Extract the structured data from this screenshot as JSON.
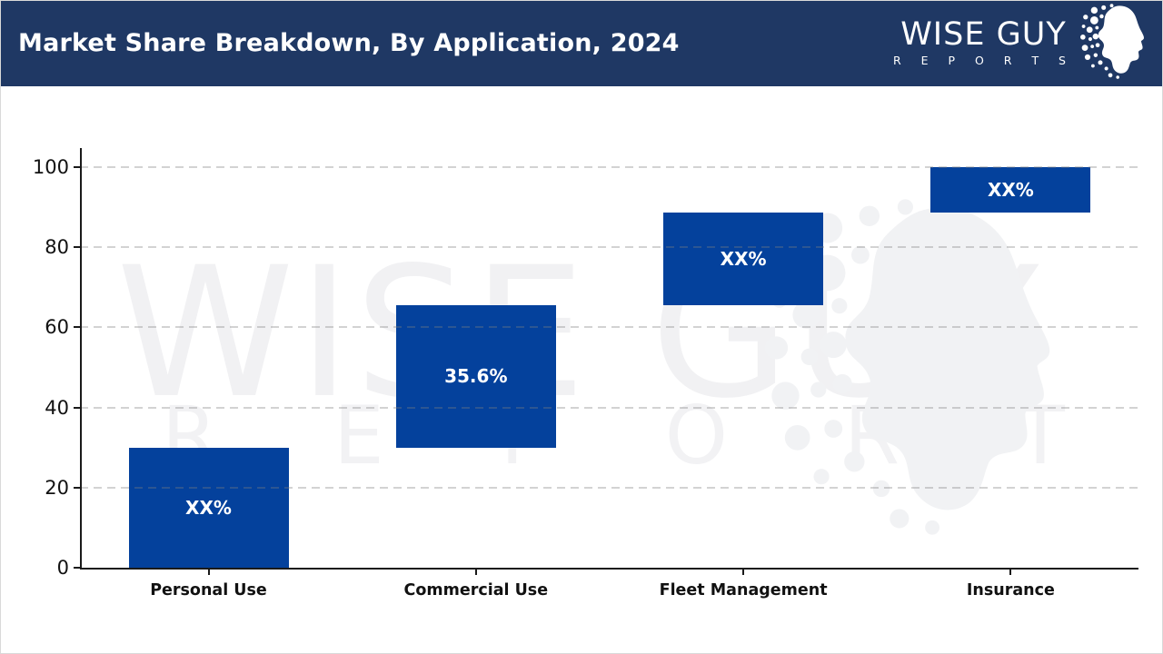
{
  "header": {
    "title": "Market Share Breakdown, By Application, 2024",
    "brand_line1": "WISE GUY",
    "brand_line2": "R E P O R T S",
    "bg_color": "#1f3864"
  },
  "watermark": {
    "line1": "WISE GUY",
    "line2": "R E P O R T S"
  },
  "chart_data": {
    "type": "bar",
    "subtype": "waterfall-floating-bars",
    "title": "Market Share Breakdown, By Application, 2024",
    "categories": [
      "Personal Use",
      "Commercial Use",
      "Fleet Management",
      "Insurance"
    ],
    "segments": [
      {
        "category": "Personal Use",
        "start": 0,
        "end": 30,
        "label": "XX%"
      },
      {
        "category": "Commercial Use",
        "start": 30,
        "end": 65.6,
        "label": "35.6%"
      },
      {
        "category": "Fleet Management",
        "start": 65.6,
        "end": 88.6,
        "label": "XX%"
      },
      {
        "category": "Insurance",
        "start": 88.6,
        "end": 100,
        "label": "XX%"
      }
    ],
    "ylim": [
      0,
      100
    ],
    "yticks": [
      0,
      20,
      40,
      60,
      80,
      100
    ],
    "xlabel": "",
    "ylabel": "",
    "grid": "dashed-horizontal",
    "legend": "none",
    "bar_color": "#04419c",
    "bar_label_color": "#ffffff"
  }
}
